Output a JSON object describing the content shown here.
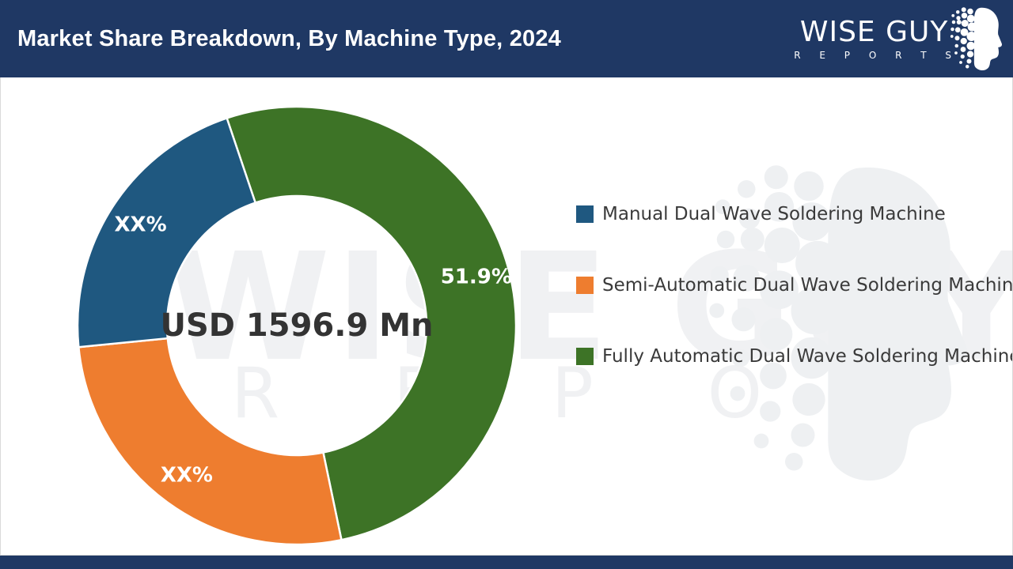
{
  "header": {
    "title": "Market Share Breakdown, By Machine Type, 2024",
    "logo": {
      "name": "WISE GUY",
      "sub": "R E P O R T S"
    }
  },
  "watermark": {
    "line1": "WISE GUY",
    "line2": "R E P O R T S"
  },
  "chart_data": {
    "type": "donut",
    "title": "Market Share Breakdown, By Machine Type, 2024",
    "center_label": "USD 1596.9 Mn",
    "start_angle_deg": -18.6,
    "legend_position": "right",
    "segments": [
      {
        "name": "Fully Automatic Dual Wave Soldering Machine",
        "display_label": "51.9%",
        "pct": 51.9,
        "color": "#3d7326",
        "masked": false
      },
      {
        "name": "Semi-Automatic Dual Wave Soldering Machine",
        "display_label": "XX%",
        "pct": 26.7,
        "color": "#ee7d2f",
        "masked": true
      },
      {
        "name": "Manual Dual Wave Soldering Machine",
        "display_label": "XX%",
        "pct": 21.4,
        "color": "#1f5880",
        "masked": true
      }
    ],
    "legend": [
      {
        "label": "Manual Dual Wave Soldering Machine",
        "color": "#1f5880"
      },
      {
        "label": "Semi-Automatic Dual Wave Soldering Machine",
        "color": "#ee7d2f"
      },
      {
        "label": "Fully Automatic Dual Wave Soldering Machine",
        "color": "#3d7326"
      }
    ]
  },
  "colors": {
    "header_bg": "#1f3864",
    "footer_bg": "#1f3864",
    "content_border": "#d9d9d9",
    "slice_label_text": "#ffffff",
    "center_text": "#333333",
    "legend_text": "#3a3a3a",
    "watermark": "#f0f1f3"
  }
}
